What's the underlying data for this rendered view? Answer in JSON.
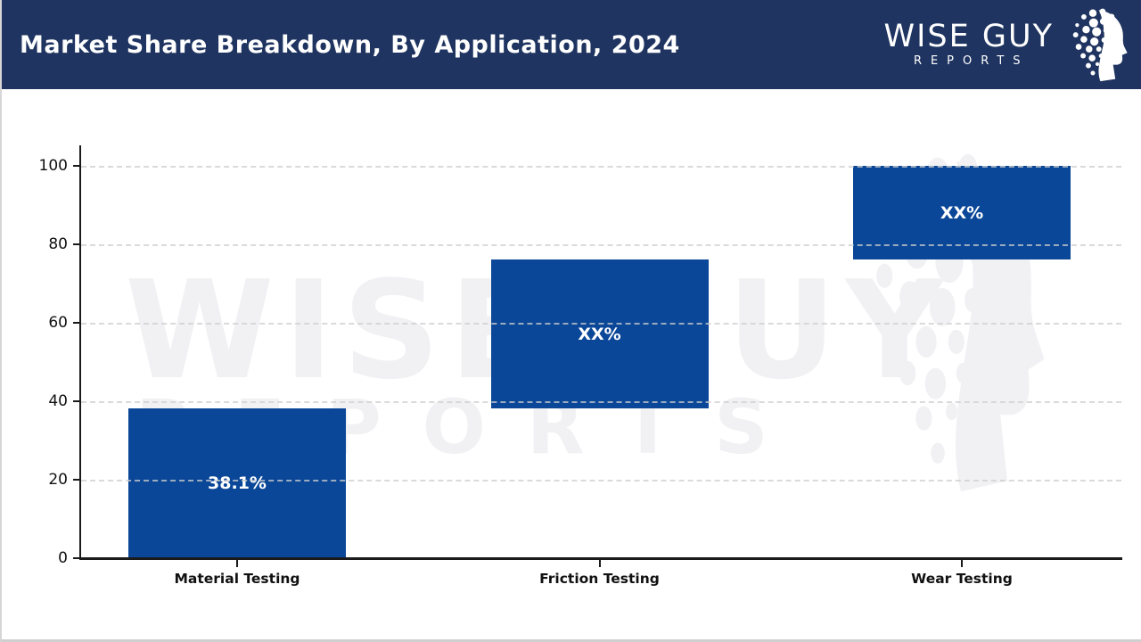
{
  "header": {
    "title": "Market Share Breakdown, By Application, 2024",
    "background": "#1f3460",
    "logo": {
      "line1": "WISE GUY",
      "line2": "REPORTS"
    }
  },
  "watermark": {
    "line1": "WISE GUY",
    "line2": "REPORTS"
  },
  "chart_data": {
    "type": "bar",
    "subtype": "waterfall-stacked-steps",
    "title": "Market Share Breakdown, By Application, 2024",
    "categories": [
      "Material Testing",
      "Friction Testing",
      "Wear Testing"
    ],
    "bars": [
      {
        "category": "Material Testing",
        "start": 0,
        "end": 38.1,
        "label": "38.1%"
      },
      {
        "category": "Friction Testing",
        "start": 38.1,
        "end": 76.1,
        "label": "XX%"
      },
      {
        "category": "Wear Testing",
        "start": 76.1,
        "end": 100,
        "label": "XX%"
      }
    ],
    "y_ticks": [
      0,
      20,
      40,
      60,
      80,
      100
    ],
    "ylim": [
      0,
      105
    ],
    "xlabel": "",
    "ylabel": "",
    "grid": "horizontal-dashed",
    "legend": "none",
    "bar_color": "#0b4798",
    "bar_label_color": "#ffffff",
    "axis_color": "#1a1a1a"
  }
}
